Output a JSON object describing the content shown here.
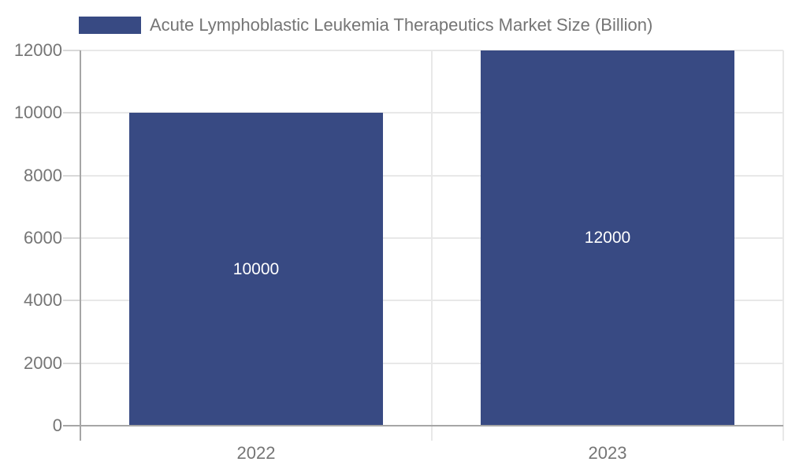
{
  "chart_data": {
    "type": "bar",
    "title": "Acute Lymphoblastic Leukemia Therapeutics Market Size (Billion)",
    "legend_entries": [
      "Acute Lymphoblastic Leukemia Therapeutics Market Size (Billion)"
    ],
    "legend_position": "top",
    "categories": [
      "2022",
      "2023"
    ],
    "series": [
      {
        "name": "Acute Lymphoblastic Leukemia Therapeutics Market Size (Billion)",
        "values": [
          10000,
          12000
        ]
      }
    ],
    "bar_value_labels": [
      "10000",
      "12000"
    ],
    "xlabel": "",
    "ylabel": "",
    "ylim": [
      0,
      12000
    ],
    "yticks": [
      0,
      2000,
      4000,
      6000,
      8000,
      10000,
      12000
    ],
    "grid": true,
    "colors": {
      "bar": "#384a83",
      "bar_label_text": "#ffffff",
      "axis_line": "#a6a6a6",
      "gridline": "#e8e8e8",
      "tick_mark": "#d9d9d9",
      "tick_text": "#757575",
      "legend_text": "#757575",
      "background": "#ffffff"
    }
  }
}
